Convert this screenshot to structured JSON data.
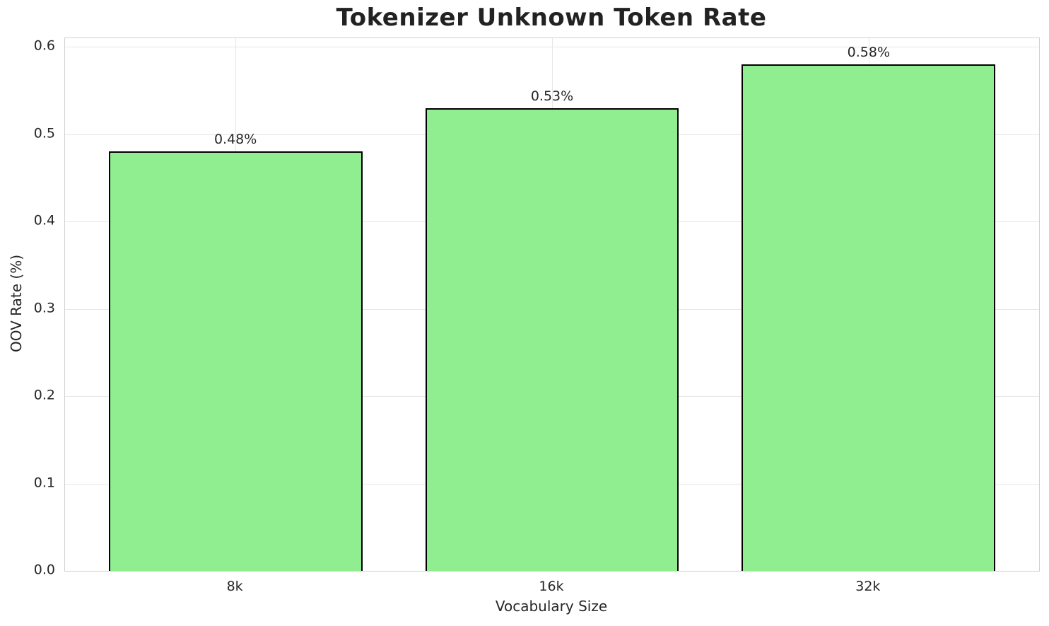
{
  "chart_data": {
    "type": "bar",
    "title": "Tokenizer Unknown Token Rate",
    "xlabel": "Vocabulary Size",
    "ylabel": "OOV Rate (%)",
    "categories": [
      "8k",
      "16k",
      "32k"
    ],
    "values": [
      0.48,
      0.53,
      0.58
    ],
    "bar_labels": [
      "0.48%",
      "0.53%",
      "0.58%"
    ],
    "yticks": [
      0.0,
      0.1,
      0.2,
      0.3,
      0.4,
      0.5,
      0.6
    ],
    "ytick_labels": [
      "0.0",
      "0.1",
      "0.2",
      "0.3",
      "0.4",
      "0.5",
      "0.6"
    ],
    "ylim": [
      0,
      0.61
    ],
    "grid": "on",
    "legend": "none",
    "colors": {
      "bar_fill": "#90EE90",
      "bar_edge": "#000000",
      "grid": "#e7e7e7",
      "spine": "#d0d0d0",
      "text": "#262626",
      "title_text": "#222222",
      "background": "#ffffff"
    }
  }
}
